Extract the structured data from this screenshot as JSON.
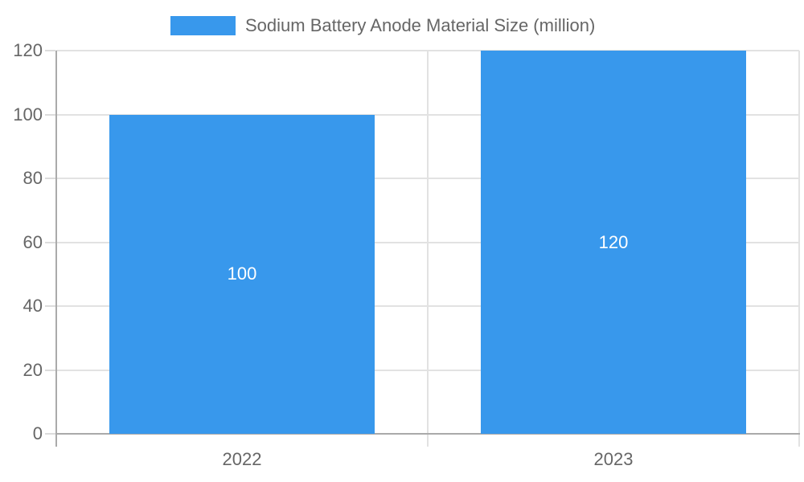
{
  "legend": {
    "label": "Sodium Battery Anode Material Size (million)"
  },
  "chart_data": {
    "type": "bar",
    "categories": [
      "2022",
      "2023"
    ],
    "series": [
      {
        "name": "Sodium Battery Anode Material Size (million)",
        "values": [
          100,
          120
        ]
      }
    ],
    "value_labels": [
      "100",
      "120"
    ],
    "title": "",
    "xlabel": "",
    "ylabel": "",
    "ylim": [
      0,
      120
    ],
    "yticks": [
      0,
      20,
      40,
      60,
      80,
      100,
      120
    ],
    "ytick_labels": [
      "0",
      "20",
      "40",
      "60",
      "80",
      "100",
      "120"
    ],
    "grid": true,
    "legend_position": "top-center",
    "bar_width_fraction": 0.715,
    "colors": {
      "bar": "#3898EC",
      "axis_text": "#666666",
      "grid_line": "#e2e2e2",
      "tick_line": "#dcdcdc",
      "axis_line": "#aaaaaa",
      "value_label": "#ffffff"
    }
  }
}
